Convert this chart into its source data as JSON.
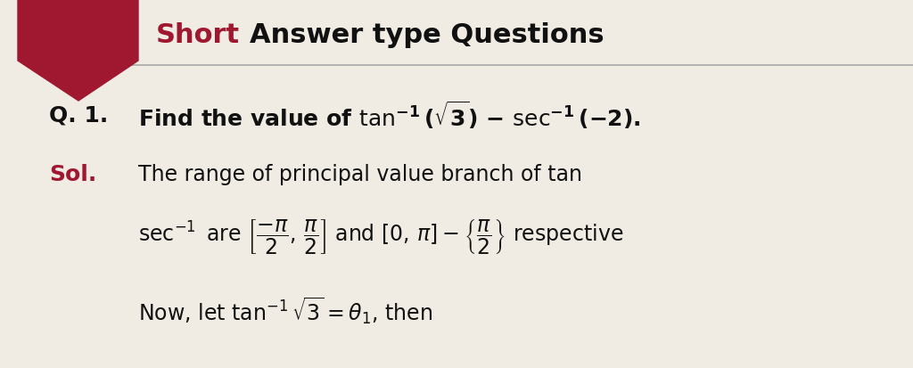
{
  "bg_color": "#f0ece4",
  "header_bg": "#f0ece4",
  "header_line_color": "#aaaaaa",
  "red_color": "#a01830",
  "font_color": "#111111",
  "sol_color": "#a01830",
  "q_label": "Q. 1.",
  "q_text": "Find the value of $\\tan^{-1}(\\sqrt{3}) - \\sec^{-1}(-2)$.",
  "sol_label": "Sol.",
  "sol_line1": "The range of principal value branch of tan",
  "sol_line2a": "$\\sec^{-1}$ are $\\left[\\dfrac{-\\pi}{2},\\, \\dfrac{\\pi}{2}\\right]$ and $[0, \\pi] - \\left\\{\\dfrac{\\pi}{2}\\right\\}$ respective",
  "sol_line3": "Now, let $\\tan^{-1}\\sqrt{3} = \\theta_1$, then",
  "header_short": "Short",
  "header_rest": " Answer type Questions",
  "fig_width": 10.24,
  "fig_height": 4.14,
  "dpi": 100
}
